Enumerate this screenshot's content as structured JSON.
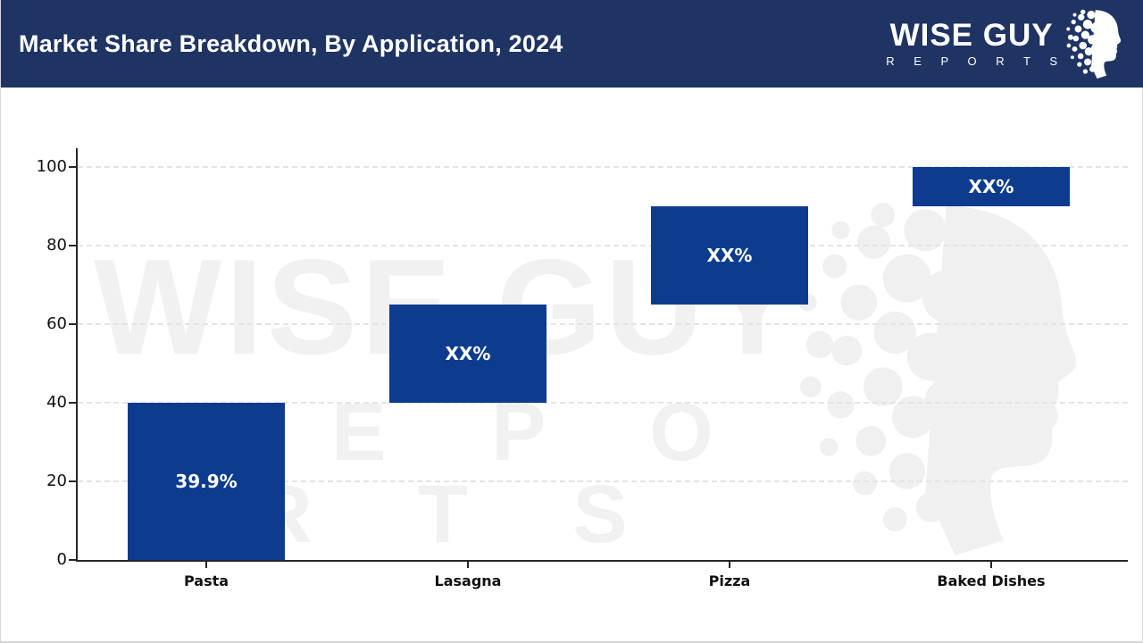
{
  "page": {
    "background": "#ffffff",
    "edge_line_color": "#d9d9d9"
  },
  "header": {
    "background": "#1f3463",
    "title": "Market Share Breakdown, By Application, 2024",
    "logo": {
      "wordmark": "WISE GUY",
      "subtext": "R E P O R T S"
    }
  },
  "watermark": {
    "wordmark": "WISE GUY",
    "subtext": "R E P O R T S",
    "color": "#f1f1f1"
  },
  "chart_data": {
    "type": "bar",
    "variant": "floating-segment-waterfall",
    "title": "Market Share Breakdown, By Application, 2024",
    "categories": [
      "Pasta",
      "Lasagna",
      "Pizza",
      "Baked Dishes"
    ],
    "series": [
      {
        "name": "Market Share %",
        "segments": [
          [
            0,
            39.9
          ],
          [
            39.9,
            64.9
          ],
          [
            64.9,
            89.9
          ],
          [
            89.9,
            100
          ]
        ]
      }
    ],
    "bar_labels": [
      "39.9%",
      "XX%",
      "XX%",
      "XX%"
    ],
    "xlabel": "",
    "ylabel": "",
    "ylim": [
      0,
      100
    ],
    "yticks": [
      0,
      20,
      40,
      60,
      80,
      100
    ],
    "grid": "horizontal dashed",
    "legend": "none",
    "bar_color": "#0d3c8f",
    "bar_label_color": "#ffffff",
    "axis_color": "#262626",
    "gridline_color": "#e4e4e4"
  }
}
